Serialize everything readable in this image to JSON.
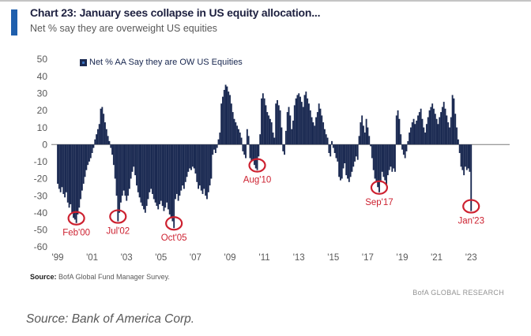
{
  "header": {
    "title": "Chart 23: January sees collapse in US equity allocation...",
    "subtitle": "Net % say they are overweight US equities",
    "accent_color": "#1f5fad"
  },
  "legend": {
    "label": "Net % AA Say they are OW US Equities",
    "marker_color": "#1b2a52",
    "marker_inner_color": "#3a72c0"
  },
  "chart_data": {
    "type": "bar",
    "title": "Net % AA Say they are OW US Equities",
    "frequency": "monthly",
    "start": "1999-01",
    "end": "2023-01",
    "ylim": [
      -60,
      50
    ],
    "y_ticks": [
      50,
      40,
      30,
      20,
      10,
      0,
      -10,
      -20,
      -30,
      -40,
      -50,
      -60
    ],
    "x_tick_labels": [
      "'99",
      "'01",
      "'03",
      "'05",
      "'07",
      "'09",
      "'11",
      "'13",
      "'15",
      "'17",
      "'19",
      "'21",
      "'23"
    ],
    "grid": false,
    "legend_position": "top-left",
    "bar_color": "#1b2a52",
    "axis_text_color": "#595959",
    "zero_line_color": "#7a7a7a",
    "annotation_color": "#cd2130",
    "values": [
      -23,
      -26,
      -28,
      -25,
      -29,
      -31,
      -28,
      -34,
      -37,
      -35,
      -40,
      -43,
      -44,
      -46,
      -41,
      -37,
      -32,
      -27,
      -23,
      -19,
      -15,
      -12,
      -10,
      -8,
      -5,
      -2,
      3,
      6,
      9,
      12,
      21,
      22,
      18,
      13,
      9,
      5,
      2,
      -2,
      -6,
      -12,
      -20,
      -30,
      -45,
      -40,
      -34,
      -30,
      -27,
      -30,
      -33,
      -30,
      -26,
      -20,
      -16,
      -13,
      -18,
      -24,
      -28,
      -31,
      -34,
      -36,
      -38,
      -40,
      -36,
      -32,
      -28,
      -26,
      -29,
      -32,
      -34,
      -36,
      -38,
      -35,
      -33,
      -36,
      -39,
      -37,
      -34,
      -38,
      -41,
      -43,
      -45,
      -49,
      -32,
      -29,
      -33,
      -30,
      -27,
      -24,
      -26,
      -22,
      -19,
      -16,
      -14,
      -15,
      -13,
      -14,
      -17,
      -22,
      -26,
      -24,
      -27,
      -29,
      -26,
      -30,
      -32,
      -28,
      -24,
      -20,
      -6,
      -3,
      -5,
      -2,
      3,
      7,
      24,
      28,
      32,
      35,
      34,
      31,
      29,
      24,
      19,
      15,
      13,
      11,
      9,
      7,
      4,
      -4,
      -6,
      -8,
      9,
      5,
      -8,
      -10,
      -9,
      -12,
      -14,
      -15,
      -7,
      6,
      27,
      30,
      27,
      23,
      19,
      17,
      15,
      13,
      7,
      4,
      24,
      26,
      23,
      20,
      10,
      -4,
      -6,
      8,
      19,
      22,
      17,
      9,
      14,
      23,
      27,
      29,
      30,
      28,
      25,
      22,
      29,
      31,
      27,
      24,
      20,
      16,
      13,
      11,
      16,
      19,
      24,
      21,
      17,
      13,
      9,
      6,
      4,
      -5,
      -7,
      2,
      -2,
      -5,
      -8,
      -10,
      -19,
      -21,
      -20,
      -14,
      -11,
      -18,
      -20,
      -22,
      -19,
      -16,
      -13,
      -10,
      -7,
      -9,
      5,
      13,
      17,
      11,
      7,
      15,
      10,
      5,
      -1,
      -8,
      -15,
      -20,
      -22,
      -25,
      -28,
      -22,
      -16,
      -19,
      -21,
      -24,
      -18,
      -15,
      -13,
      -16,
      -14,
      -16,
      17,
      20,
      15,
      6,
      -3,
      -6,
      -8,
      -4,
      2,
      7,
      10,
      13,
      15,
      12,
      14,
      17,
      19,
      21,
      15,
      10,
      7,
      12,
      16,
      20,
      22,
      24,
      21,
      18,
      15,
      12,
      16,
      19,
      22,
      25,
      21,
      17,
      13,
      10,
      16,
      29,
      27,
      18,
      10,
      3,
      -5,
      -13,
      -15,
      -18,
      -13,
      -15,
      -14,
      -16,
      -39
    ],
    "annotations": [
      {
        "label": "Feb'00",
        "index": 13,
        "value": -46
      },
      {
        "label": "Jul'02",
        "index": 42,
        "value": -45
      },
      {
        "label": "Oct'05",
        "index": 81,
        "value": -49
      },
      {
        "label": "Aug'10",
        "index": 139,
        "value": -15
      },
      {
        "label": "Sep'17",
        "index": 224,
        "value": -28
      },
      {
        "label": "Jan'23",
        "index": 288,
        "value": -39
      }
    ]
  },
  "footer": {
    "source_prefix": "Source:",
    "source_text": " BofA Global Fund Manager Survey.",
    "brand": "BofA GLOBAL RESEARCH"
  },
  "caption": {
    "text": "Source: Bank of America Corp."
  }
}
